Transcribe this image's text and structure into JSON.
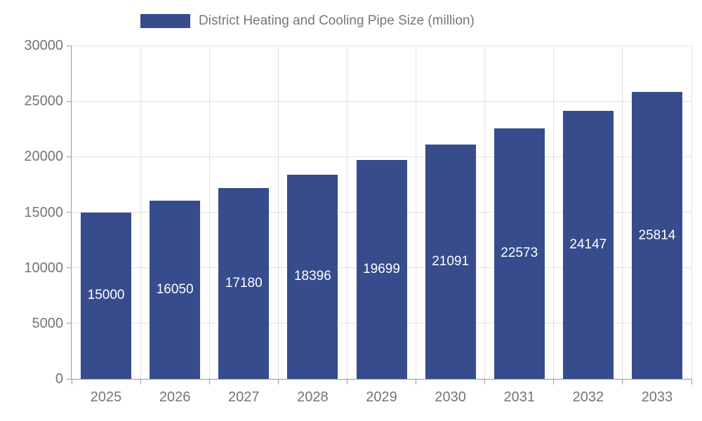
{
  "chart_data": {
    "type": "bar",
    "title": "District Heating and Cooling Pipe Size (million)",
    "categories": [
      "2025",
      "2026",
      "2027",
      "2028",
      "2029",
      "2030",
      "2031",
      "2032",
      "2033"
    ],
    "values": [
      15000,
      16050,
      17180,
      18396,
      19699,
      21091,
      22573,
      24147,
      25814
    ],
    "xlabel": "",
    "ylabel": "",
    "ylim": [
      0,
      30000
    ],
    "yticks": [
      0,
      5000,
      10000,
      15000,
      20000,
      25000,
      30000
    ],
    "grid": true,
    "legend_position": "top",
    "value_labels_position": "inside-center",
    "colors": {
      "bar": "#364C8C",
      "bar_label_text": "#ffffff",
      "axis_text": "#757575",
      "legend_text": "#777777",
      "grid_line": "#e3e3e3",
      "axis_line": "#999999"
    }
  }
}
